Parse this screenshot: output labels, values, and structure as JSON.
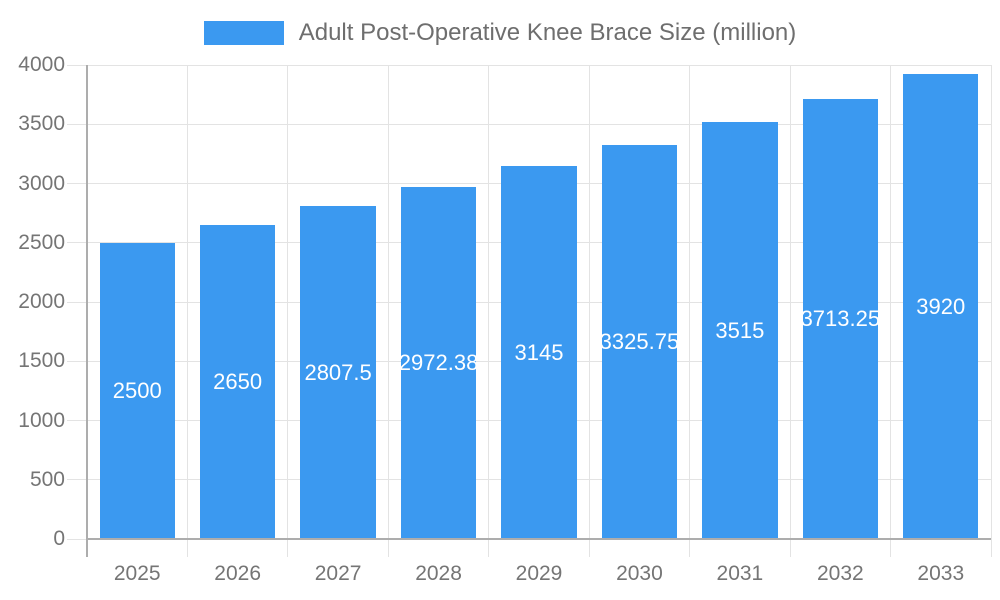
{
  "legend": {
    "label": "Adult Post-Operative Knee Brace Size (million)"
  },
  "chart_data": {
    "type": "bar",
    "title": "Adult Post-Operative Knee Brace Size (million)",
    "categories": [
      "2025",
      "2026",
      "2027",
      "2028",
      "2029",
      "2030",
      "2031",
      "2032",
      "2033"
    ],
    "values": [
      2500,
      2650,
      2807.5,
      2972.38,
      3145,
      3325.75,
      3515,
      3713.25,
      3920
    ],
    "value_labels": [
      "2500",
      "2650",
      "2807.5",
      "2972.38",
      "3145",
      "3325.75",
      "3515",
      "3713.25",
      "3920"
    ],
    "xlabel": "",
    "ylabel": "",
    "ylim": [
      0,
      4000
    ],
    "ytick_step": 500,
    "ytick_labels": [
      "0",
      "500",
      "1000",
      "1500",
      "2000",
      "2500",
      "3000",
      "3500",
      "4000"
    ],
    "grid": true,
    "legend_position": "top",
    "colors": {
      "bar": "#3B99F0",
      "grid": "#E3E3E3",
      "axis": "#ADADAD",
      "tick_text": "#757575",
      "title_text": "#6E6E6E",
      "value_text": "#FFFFFF",
      "background": "#FFFFFF"
    }
  }
}
